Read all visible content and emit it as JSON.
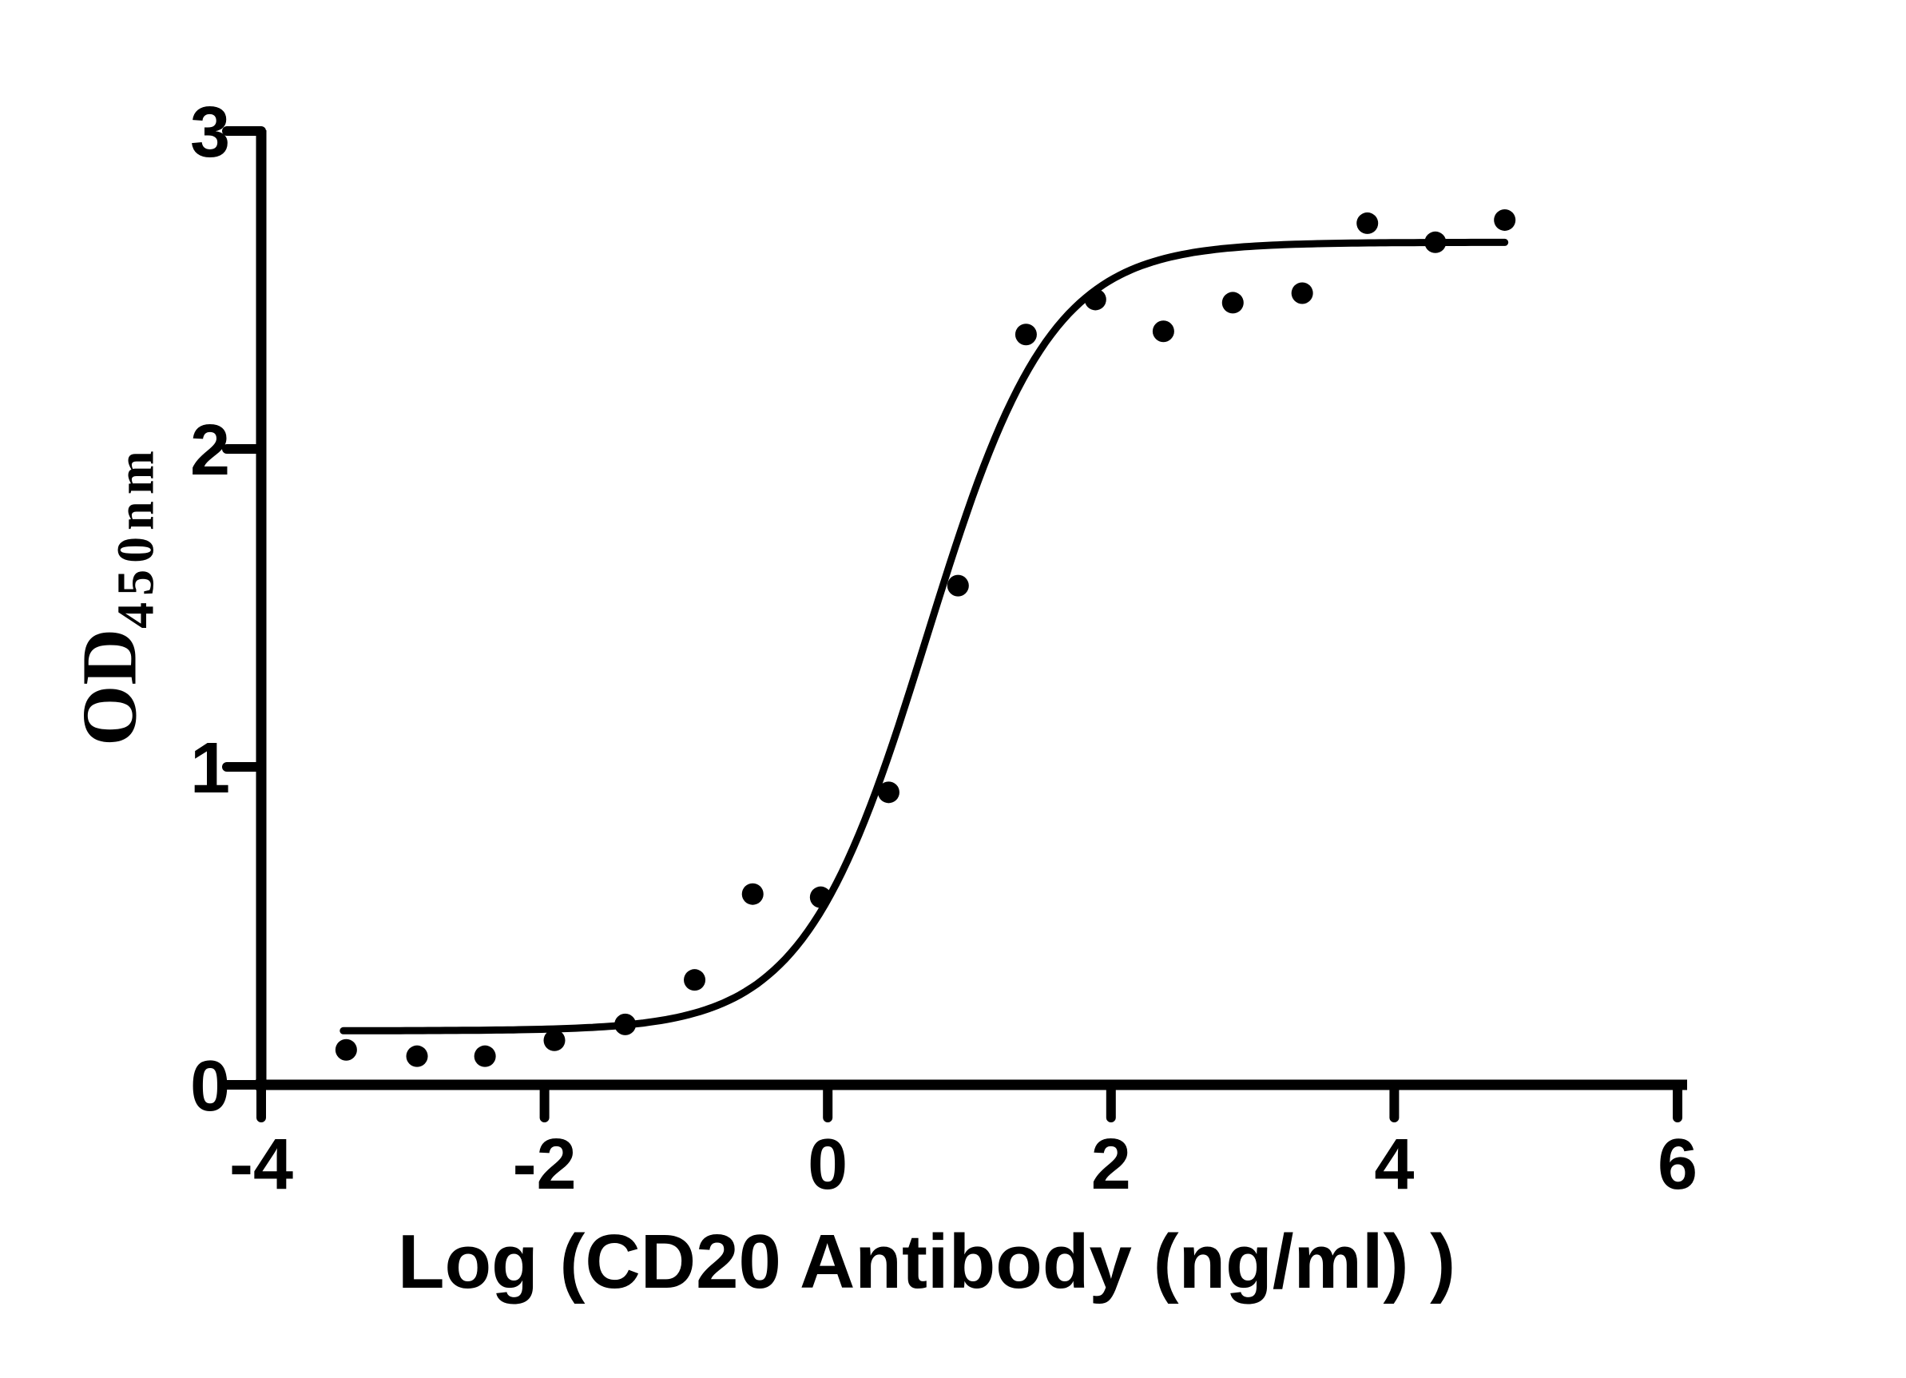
{
  "chart_data": {
    "type": "scatter",
    "subtype": "sigmoidal-dose-response-with-fit-curve",
    "xlabel": "Log（CD20 Antibody（ng/ml））",
    "ylabel_main": "OD",
    "ylabel_sub": "450nm",
    "xlim": [
      -4,
      6
    ],
    "ylim": [
      0,
      3
    ],
    "xticks": [
      -4,
      -2,
      0,
      2,
      4,
      6
    ],
    "yticks": [
      0,
      1,
      2,
      3
    ],
    "grid": false,
    "legend": null,
    "points": {
      "log_conc": [
        -3.4,
        -2.9,
        -2.42,
        -1.93,
        -1.43,
        -0.94,
        -0.53,
        -0.05,
        0.43,
        0.92,
        1.4,
        1.89,
        2.37,
        2.86,
        3.35,
        3.81,
        4.29,
        4.78
      ],
      "od": [
        0.11,
        0.09,
        0.09,
        0.14,
        0.19,
        0.33,
        0.6,
        0.59,
        0.92,
        1.57,
        2.36,
        2.47,
        2.37,
        2.46,
        2.49,
        2.71,
        2.65,
        2.72
      ]
    },
    "fit_curve": {
      "model": "4PL",
      "bottom": 0.17,
      "top": 2.65,
      "log_ec50": 0.7,
      "hill_slope": 1.0,
      "x_start": -3.42,
      "x_end": 4.79
    },
    "marker": {
      "shape": "filled-circle",
      "color": "#000000"
    },
    "colors": {
      "foreground": "#000000",
      "background": "#ffffff"
    }
  }
}
